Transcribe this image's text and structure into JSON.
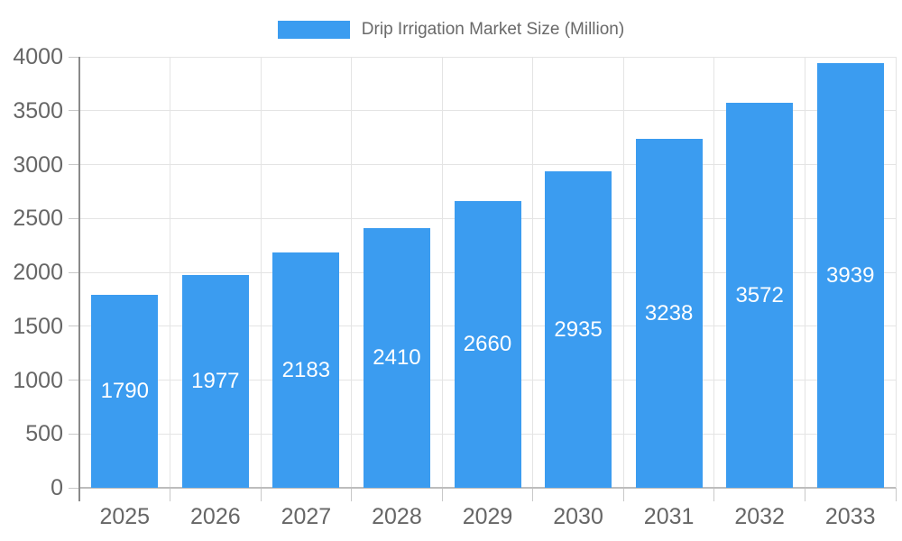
{
  "chart_data": {
    "type": "bar",
    "title": "Drip Irrigation Market Size (Million)",
    "legend": [
      "Drip Irrigation Market Size (Million)"
    ],
    "legend_position": "top-center",
    "categories": [
      "2025",
      "2026",
      "2027",
      "2028",
      "2029",
      "2030",
      "2031",
      "2032",
      "2033"
    ],
    "values": [
      1790,
      1977,
      2183,
      2410,
      2660,
      2935,
      3238,
      3572,
      3939
    ],
    "bar_value_labels": [
      "1790",
      "1977",
      "2183",
      "2410",
      "2660",
      "2935",
      "3238",
      "3572",
      "3939"
    ],
    "xlabel": "",
    "ylabel": "",
    "ylim": [
      0,
      4000
    ],
    "ytick_interval": 500,
    "yticks": [
      0,
      500,
      1000,
      1500,
      2000,
      2500,
      3000,
      3500,
      4000
    ],
    "grid": true,
    "value_labels_position": "inside-center",
    "colors": {
      "bar": "#3B9CF0",
      "bar_label": "#FFFFFF",
      "axis_text": "#666666",
      "legend_text": "#696969",
      "gridline": "#E4E4E4",
      "tick": "#C8C8C8",
      "axis_line": "#8A8A8A",
      "baseline": "#BDBDBD",
      "background": "#FFFFFF"
    }
  }
}
